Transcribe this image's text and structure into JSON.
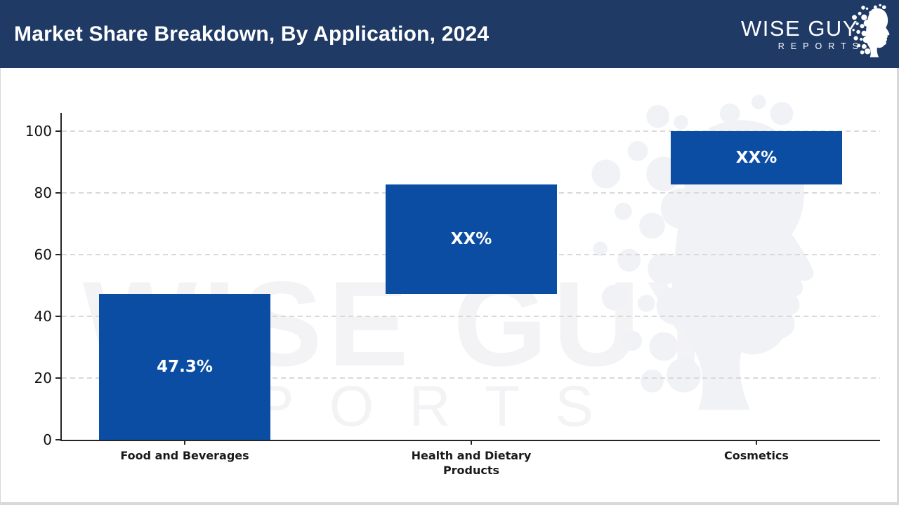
{
  "header": {
    "title": "Market Share Breakdown, By Application, 2024",
    "bg_color": "#203a66",
    "logo": {
      "name": "WISE GUY",
      "sub": "REPORTS"
    }
  },
  "watermark": {
    "name": "WISE GUY",
    "sub": "REPORTS"
  },
  "chart_data": {
    "type": "bar",
    "variant": "floating-segment-waterfall",
    "title": "Market Share Breakdown, By Application, 2024",
    "categories": [
      "Food and Beverages",
      "Health and Dietary Products",
      "Cosmetics"
    ],
    "segments": [
      {
        "category": "Food and Beverages",
        "start": 0,
        "end": 47.3,
        "label": "47.3%"
      },
      {
        "category": "Health and Dietary Products",
        "start": 47.3,
        "end": 82.7,
        "label": "XX%"
      },
      {
        "category": "Cosmetics",
        "start": 82.7,
        "end": 100,
        "label": "XX%"
      }
    ],
    "yticks": [
      0,
      20,
      40,
      60,
      80,
      100
    ],
    "ylim": [
      0,
      105
    ],
    "xlabel": "",
    "ylabel": "",
    "bar_color": "#0b4da2",
    "bar_label_color": "#ffffff",
    "grid": {
      "axis": "y",
      "style": "dashed",
      "color": "#d9d9d9"
    },
    "legend": "none",
    "background": "#ffffff"
  }
}
